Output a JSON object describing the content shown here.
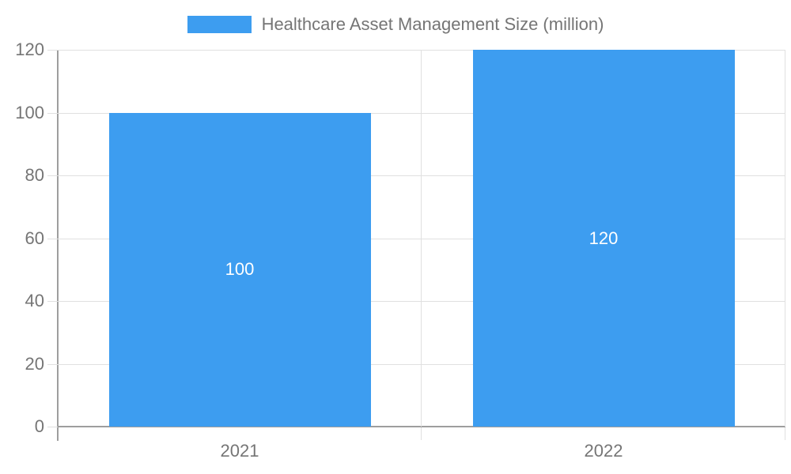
{
  "legend": {
    "label": "Healthcare Asset Management Size (million)"
  },
  "chart_data": {
    "type": "bar",
    "title": "Healthcare Asset Management Size (million)",
    "categories": [
      "2021",
      "2022"
    ],
    "values": [
      100,
      120
    ],
    "value_labels": [
      "100",
      "120"
    ],
    "xlabel": "",
    "ylabel": "",
    "ylim": [
      0,
      120
    ],
    "yticks": [
      0,
      20,
      40,
      60,
      80,
      100,
      120
    ],
    "grid": true,
    "legend_position": "top",
    "colors": {
      "bar": "#3D9DF0",
      "axis_line": "#9E9E9E",
      "gridline": "#E0E0E0",
      "tick_text": "#757575",
      "value_label_text": "#FFFFFF",
      "background": "#FFFFFF"
    }
  }
}
